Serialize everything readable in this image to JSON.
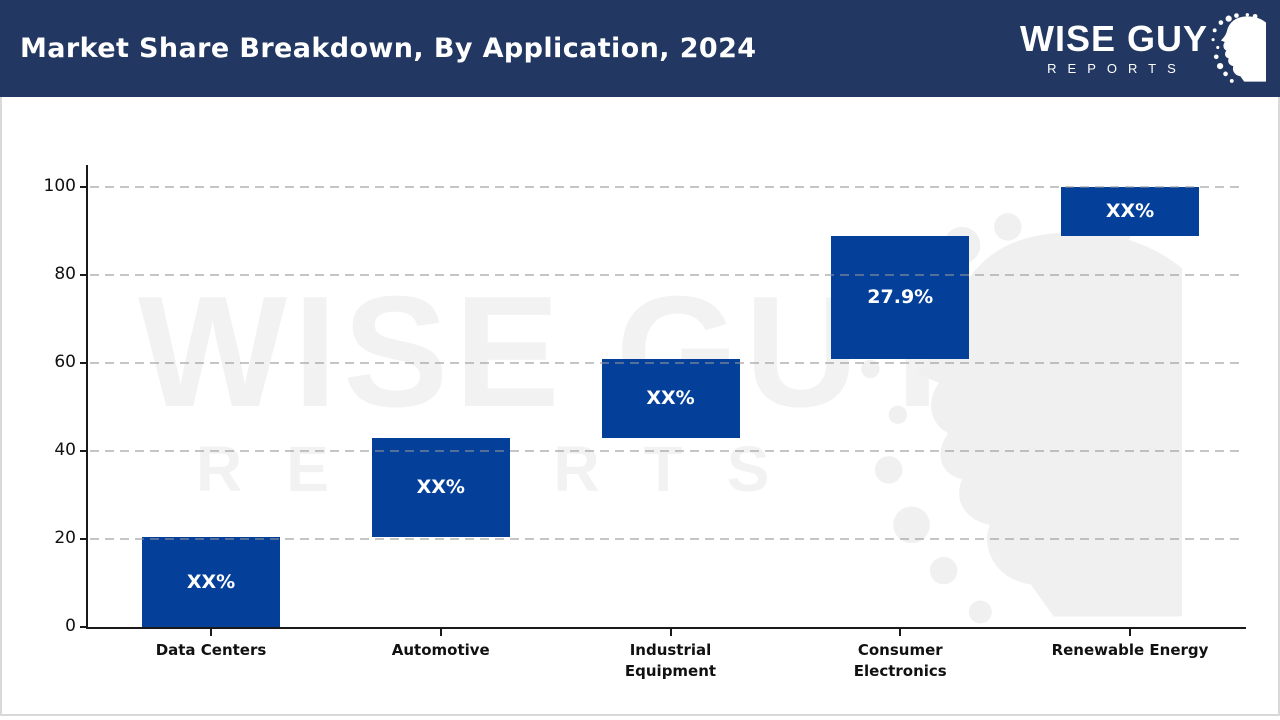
{
  "header": {
    "title": "Market Share Breakdown, By Application, 2024",
    "logo": {
      "line1": "WISE GUY",
      "line2": "REPORTS"
    }
  },
  "watermark": {
    "line1": "WISE GUY",
    "line2": "REPORTS"
  },
  "chart_data": {
    "type": "bar",
    "subtype": "waterfall-floating-bars",
    "title": "Market Share Breakdown, By Application, 2024",
    "categories": [
      "Data Centers",
      "Automotive",
      "Industrial\nEquipment",
      "Consumer\nElectronics",
      "Renewable Energy"
    ],
    "segments": [
      {
        "category": "Data Centers",
        "start": 0,
        "end": 20.5,
        "label": "XX%"
      },
      {
        "category": "Automotive",
        "start": 20.5,
        "end": 43,
        "label": "XX%"
      },
      {
        "category": "Industrial Equipment",
        "start": 43,
        "end": 61,
        "label": "XX%"
      },
      {
        "category": "Consumer Electronics",
        "start": 61,
        "end": 88.9,
        "label": "27.9%"
      },
      {
        "category": "Renewable Energy",
        "start": 88.9,
        "end": 100,
        "label": "XX%"
      }
    ],
    "y_ticks": [
      0,
      20,
      40,
      60,
      80,
      100
    ],
    "ylim": [
      0,
      105
    ],
    "xlabel": "",
    "ylabel": "",
    "grid": "horizontal-dashed",
    "legend": "none",
    "bar_color": "#04409a",
    "bar_label_color": "#ffffff"
  },
  "colors": {
    "header_bg": "#223761",
    "bar": "#04409a",
    "axis": "#1a1a1a",
    "grid": "#969696",
    "watermark": "#f2f2f2",
    "frame_border": "#d9d9d9"
  }
}
